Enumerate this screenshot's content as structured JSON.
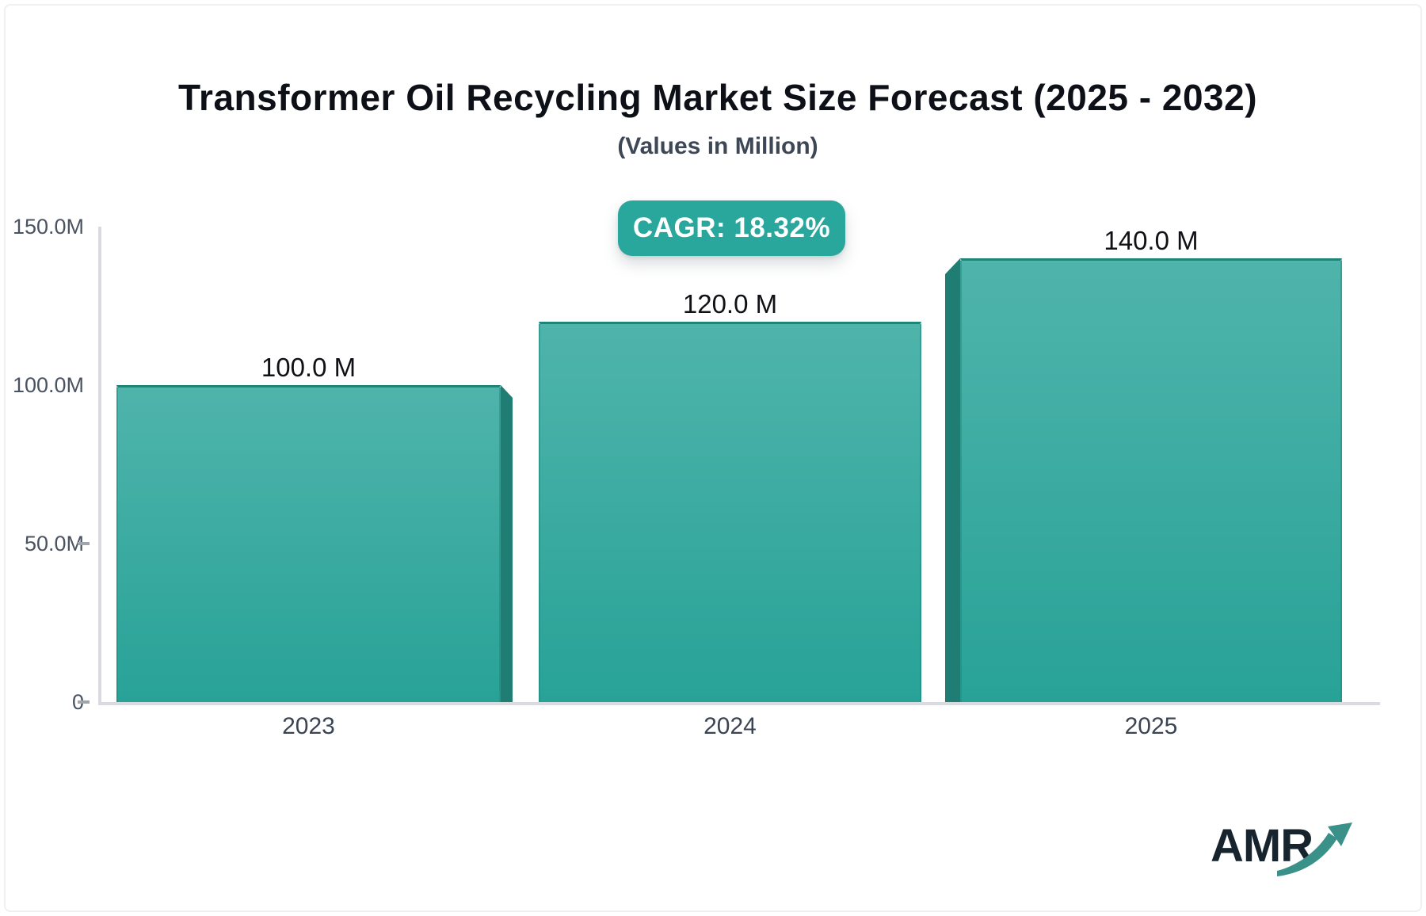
{
  "header": {
    "title": "Transformer Oil Recycling Market Size Forecast (2025 - 2032)",
    "subtitle": "(Values in Million)"
  },
  "badge": {
    "label": "CAGR: 18.32%"
  },
  "chart_data": {
    "type": "bar",
    "title": "Transformer Oil Recycling Market Size Forecast (2025 - 2032)",
    "subtitle": "(Values in Million)",
    "cagr_label": "CAGR: 18.32%",
    "categories": [
      "2023",
      "2024",
      "2025"
    ],
    "values": [
      100.0,
      120.0,
      140.0
    ],
    "value_labels": [
      "100.0 M",
      "120.0 M",
      "140.0 M"
    ],
    "ylim": [
      0,
      150
    ],
    "yticks": [
      {
        "value": 150,
        "label": "150.0M",
        "dash": false
      },
      {
        "value": 100,
        "label": "100.0M",
        "dash": false
      },
      {
        "value": 50,
        "label": "50.0M",
        "dash": true
      },
      {
        "value": 0,
        "label": "0",
        "dash": true
      }
    ],
    "grid": false,
    "legend": false,
    "colors": {
      "bar_top": "#4fb4ab",
      "bar_bottom": "#28a297",
      "bar_stroke": "#1c8578",
      "bar_side": "#207d73",
      "badge_bg": "#2aa79c",
      "axis_line": "#d9dbe0",
      "tick_dash": "#a0a5ad"
    }
  },
  "logo": {
    "text": "AMR",
    "arrow_color": "#3a9189"
  }
}
